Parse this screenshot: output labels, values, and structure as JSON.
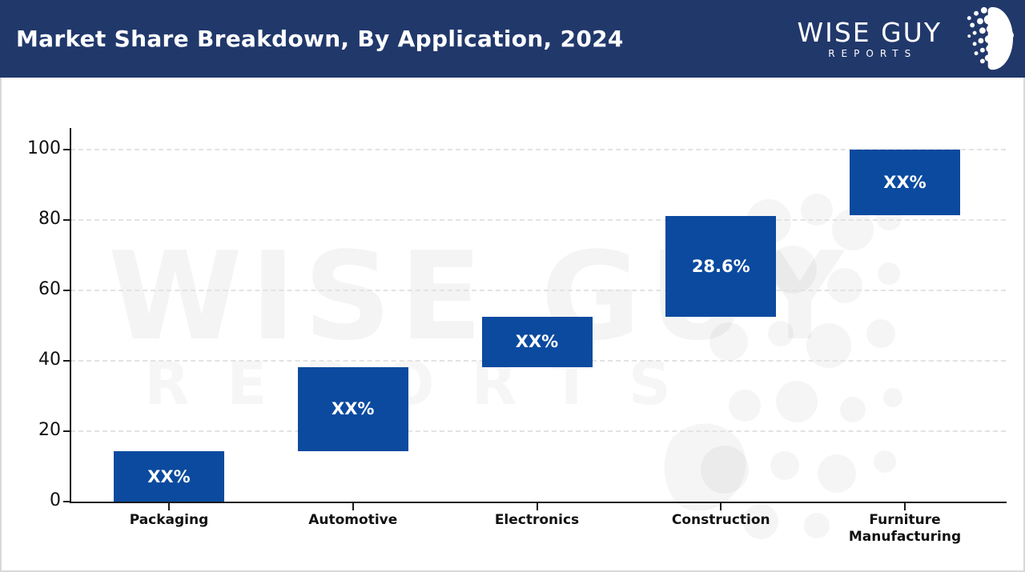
{
  "header": {
    "title": "Market Share Breakdown, By Application, 2024",
    "logo": {
      "primary": "WISE GUY",
      "secondary": "REPORTS"
    }
  },
  "watermark": {
    "primary": "WISE GUY",
    "secondary": "REPORTS"
  },
  "colors": {
    "header_bg": "#21386B",
    "bar_fill": "#0B4A9F",
    "bar_label": "#FFFFFF",
    "gridline": "#E3E3E3",
    "axis": "#1A1A1A",
    "tick_label": "#111111"
  },
  "chart_data": {
    "type": "bar",
    "subtype": "waterfall-floating-bars",
    "title": "Market Share Breakdown, By Application, 2024",
    "xlabel": "",
    "ylabel": "",
    "ylim": [
      0,
      106
    ],
    "yticks": [
      0,
      20,
      40,
      60,
      80,
      100
    ],
    "grid": "horizontal-dashed",
    "legend": "none",
    "categories": [
      "Packaging",
      "Automotive",
      "Electronics",
      "Construction",
      "Furniture Manufacturing"
    ],
    "bars": [
      {
        "category": "Packaging",
        "start": 0,
        "end": 14.3,
        "label": "XX%"
      },
      {
        "category": "Automotive",
        "start": 14.3,
        "end": 38.2,
        "label": "XX%"
      },
      {
        "category": "Electronics",
        "start": 38.2,
        "end": 52.5,
        "label": "XX%"
      },
      {
        "category": "Construction",
        "start": 52.5,
        "end": 81.1,
        "label": "28.6%"
      },
      {
        "category": "Furniture Manufacturing",
        "start": 81.4,
        "end": 100,
        "label": "XX%"
      }
    ]
  }
}
